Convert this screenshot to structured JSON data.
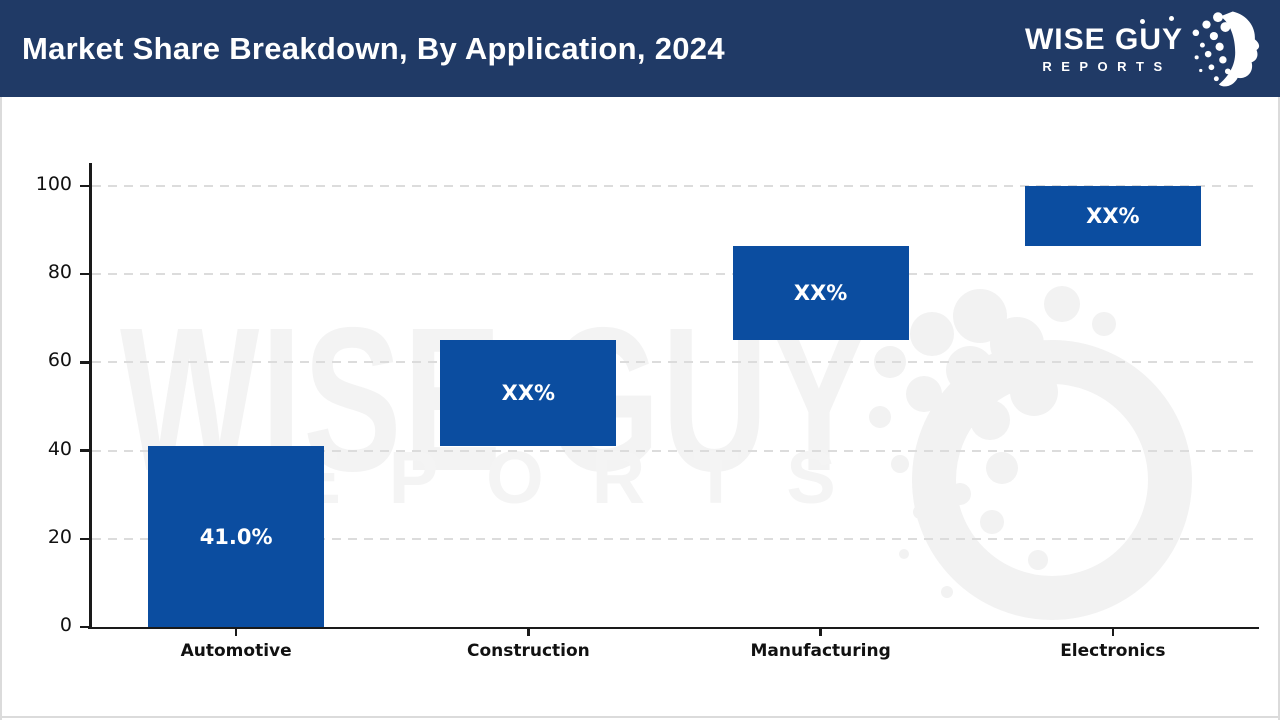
{
  "header": {
    "title": "Market Share Breakdown, By Application, 2024",
    "logo": {
      "line1": "WISE GUY",
      "line2": "REPORTS"
    }
  },
  "watermark": {
    "line1": "WISE GUY",
    "line2": "REPORTS"
  },
  "chart_data": {
    "type": "bar",
    "subtype": "waterfall-segments",
    "title": "Market Share Breakdown, By Application, 2024",
    "categories": [
      "Automotive",
      "Construction",
      "Manufacturing",
      "Electronics"
    ],
    "segments": [
      {
        "category": "Automotive",
        "start": 0,
        "end": 41,
        "label": "41.0%"
      },
      {
        "category": "Construction",
        "start": 41,
        "end": 65,
        "label": "XX%"
      },
      {
        "category": "Manufacturing",
        "start": 65,
        "end": 86.5,
        "label": "XX%"
      },
      {
        "category": "Electronics",
        "start": 86.5,
        "end": 100,
        "label": "XX%"
      }
    ],
    "y_ticks": [
      0,
      20,
      40,
      60,
      80,
      100
    ],
    "ylim": [
      0,
      100
    ],
    "xlabel": "",
    "ylabel": "",
    "grid": "horizontal-dashed",
    "legend": "none",
    "bar_color": "#0B4DA0",
    "bar_label_color": "#FFFFFF"
  },
  "colors": {
    "header_bg": "#203A66",
    "bar": "#0B4DA0",
    "grid": "#DCDCDC",
    "axis": "#1A1A1A",
    "watermark": "#F2F2F2",
    "frame_border": "#DBDBDB"
  }
}
